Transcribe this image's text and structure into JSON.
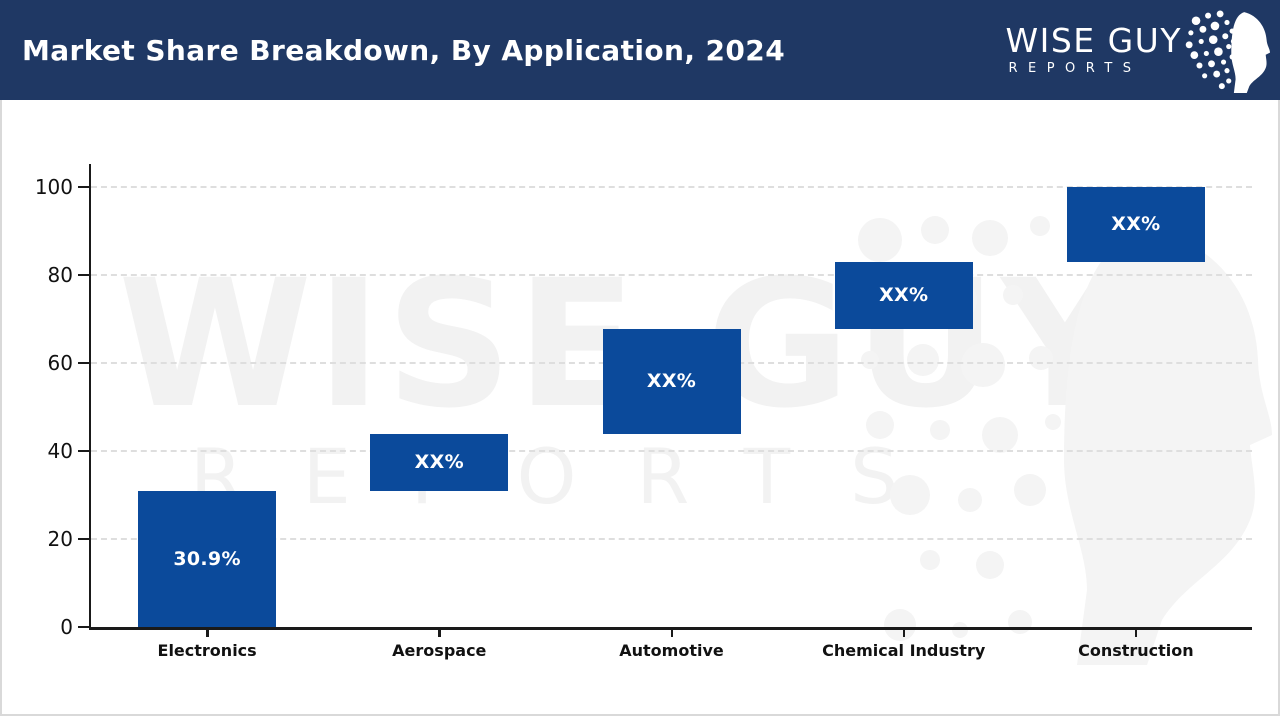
{
  "header": {
    "title": "Market Share Breakdown, By Application, 2024",
    "bg_color": "#1f3864",
    "logo": {
      "line1": "WISE GUY",
      "line2": "REPORTS"
    }
  },
  "watermark": {
    "line1": "WISE GUY",
    "line2": "REPORTS"
  },
  "chart_data": {
    "type": "bar",
    "subtype": "waterfall",
    "title": "Market Share Breakdown, By Application, 2024",
    "categories": [
      "Electronics",
      "Aerospace",
      "Automotive",
      "Chemical Industry",
      "Construction"
    ],
    "segments": [
      {
        "category": "Electronics",
        "start": 0,
        "end": 30.9,
        "value": 30.9,
        "label": "30.9%"
      },
      {
        "category": "Aerospace",
        "start": 30.9,
        "end": 43.9,
        "value": 13.0,
        "label": "XX%"
      },
      {
        "category": "Automotive",
        "start": 43.9,
        "end": 67.7,
        "value": 23.8,
        "label": "XX%"
      },
      {
        "category": "Chemical Industry",
        "start": 67.7,
        "end": 83.0,
        "value": 15.3,
        "label": "XX%"
      },
      {
        "category": "Construction",
        "start": 83.0,
        "end": 100.0,
        "value": 17.0,
        "label": "XX%"
      }
    ],
    "yticks": [
      0,
      20,
      40,
      60,
      80,
      100
    ],
    "ylim": [
      0,
      100
    ],
    "xlabel": "",
    "ylabel": "",
    "bar_color": "#0b4a9b",
    "label_color": "#ffffff",
    "grid": "horizontal-dashed",
    "legend": "none"
  }
}
